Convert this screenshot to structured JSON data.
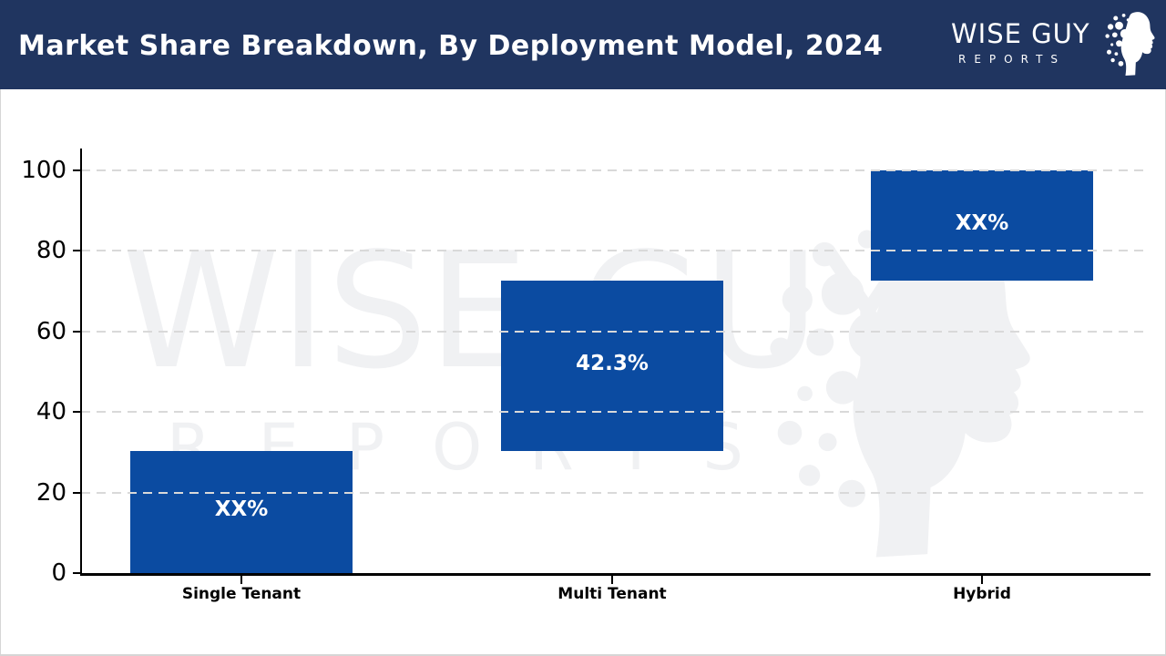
{
  "header": {
    "title": "Market Share Breakdown, By Deployment Model, 2024",
    "logo": {
      "line1": "WISE GUY",
      "line2": "REPORTS"
    }
  },
  "watermark": {
    "line1": "WISE GUY",
    "line2": "REPORTS"
  },
  "colors": {
    "header_bg": "#203560",
    "bar": "#0b4ba1",
    "grid": "#d9d9d9",
    "axis": "#000000",
    "bar_label": "#ffffff",
    "watermark": "#f0f1f3"
  },
  "chart_data": {
    "type": "bar",
    "subtype": "floating-waterfall",
    "title": "Market Share Breakdown, By Deployment Model, 2024",
    "xlabel": "",
    "ylabel": "",
    "categories": [
      "Single Tenant",
      "Multi Tenant",
      "Hybrid"
    ],
    "segments": [
      {
        "category": "Single Tenant",
        "start": 0,
        "end": 30.3,
        "value_label": "XX%"
      },
      {
        "category": "Multi Tenant",
        "start": 30.3,
        "end": 72.6,
        "value_label": "42.3%"
      },
      {
        "category": "Hybrid",
        "start": 72.6,
        "end": 100,
        "value_label": "XX%"
      }
    ],
    "yticks": [
      0,
      20,
      40,
      60,
      80,
      100
    ],
    "ylim": [
      0,
      100
    ],
    "grid": "horizontal-dashed-over-bars",
    "legend": "none"
  }
}
